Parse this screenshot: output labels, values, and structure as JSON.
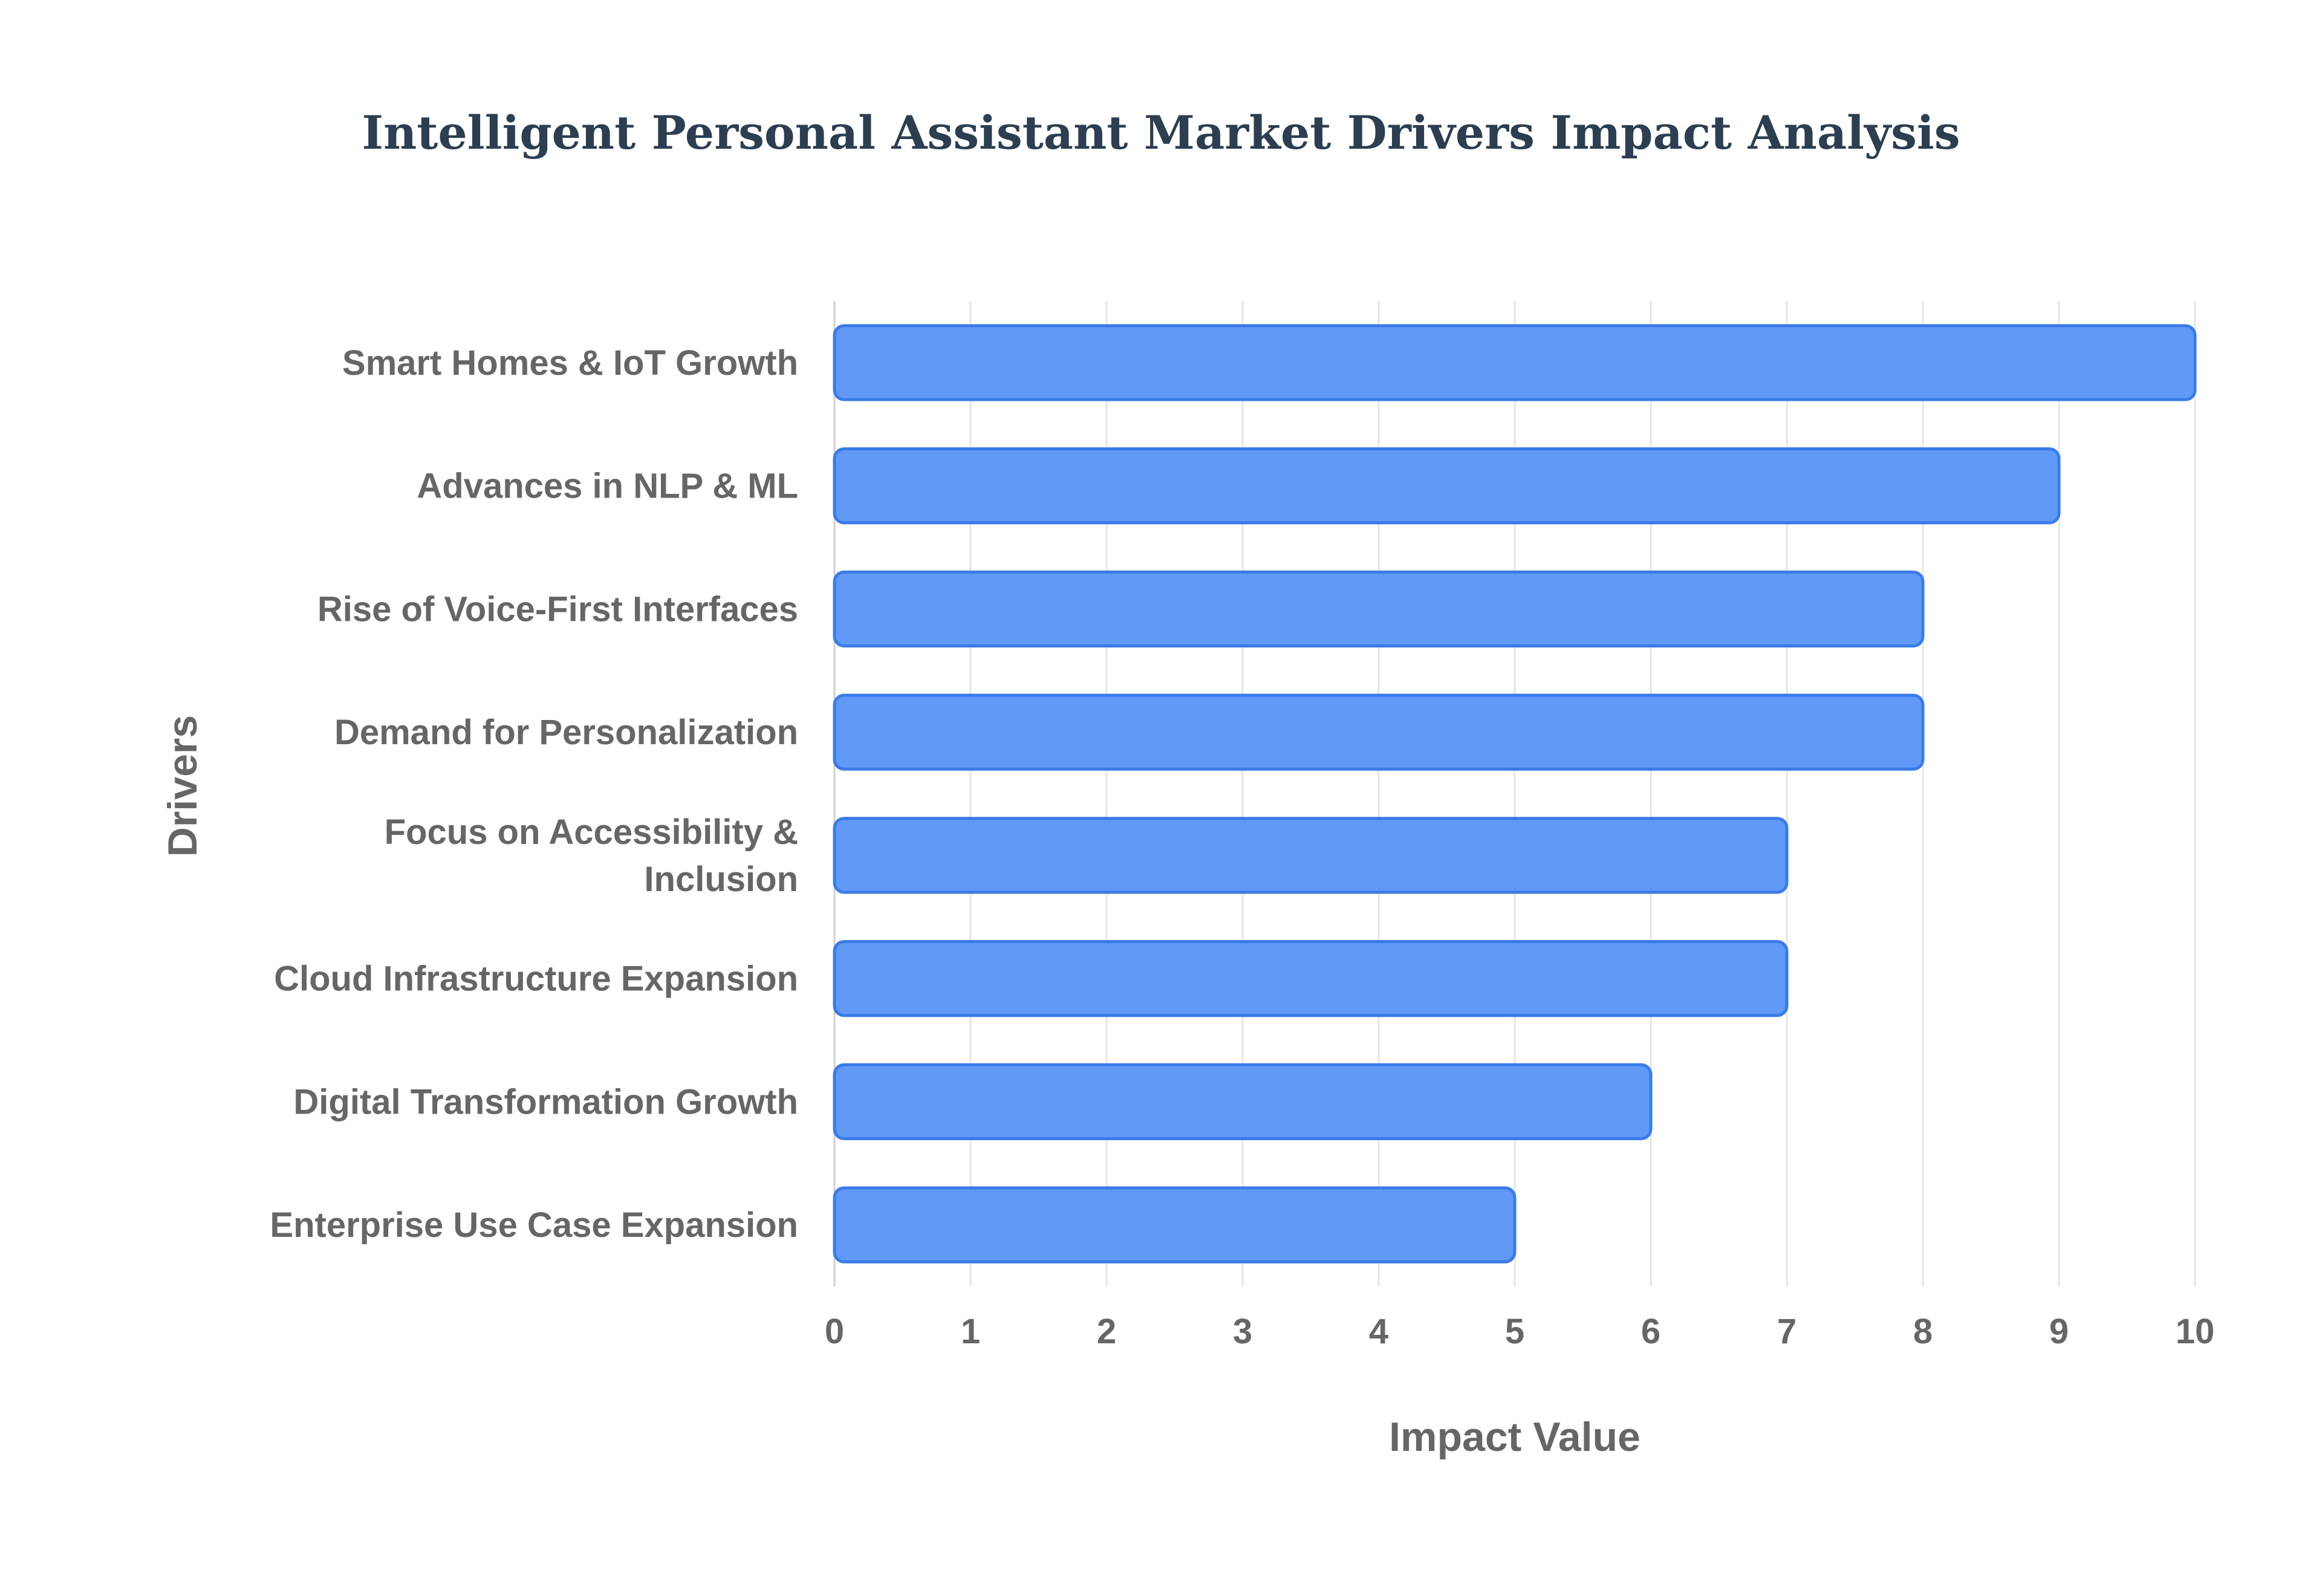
{
  "chart_data": {
    "type": "bar",
    "orientation": "horizontal",
    "title": "Intelligent Personal Assistant Market Drivers Impact Analysis",
    "xlabel": "Impact Value",
    "ylabel": "Drivers",
    "xlim": [
      0,
      10
    ],
    "ticks": [
      "0",
      "1",
      "2",
      "3",
      "4",
      "5",
      "6",
      "7",
      "8",
      "9",
      "10"
    ],
    "grid": true,
    "categories": [
      "Smart Homes & IoT Growth",
      "Advances in NLP & ML",
      "Rise of Voice-First Interfaces",
      "Demand for Personalization",
      "Focus on Accessibility & Inclusion",
      "Cloud Infrastructure Expansion",
      "Digital Transformation Growth",
      "Enterprise Use Case Expansion"
    ],
    "values": [
      10,
      9,
      8,
      8,
      7,
      7,
      6,
      5
    ],
    "colors": {
      "bar_fill": "#6199f7",
      "bar_stroke": "#3b7be8"
    }
  }
}
